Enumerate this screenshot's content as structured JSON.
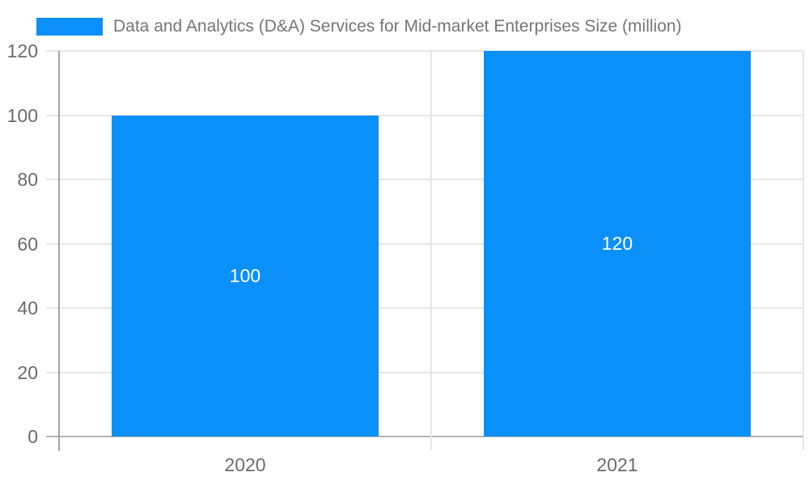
{
  "chart_data": {
    "type": "bar",
    "title": "",
    "categories": [
      "2020",
      "2021"
    ],
    "series": [
      {
        "name": "Data and Analytics (D&A) Services for Mid-market Enterprises Size (million)",
        "values": [
          100,
          120
        ],
        "data_labels": [
          "100",
          "120"
        ],
        "color": "#0b90f9"
      }
    ],
    "xlabel": "",
    "ylabel": "",
    "ylim": [
      0,
      120
    ],
    "y_ticks": [
      0,
      20,
      40,
      60,
      80,
      100,
      120
    ],
    "grid": true,
    "legend_position": "top-left",
    "bar_label_color": "#ffffff"
  },
  "colors": {
    "bar": "#0b90f9",
    "grid_line": "#e6e6e6",
    "axis_line": "#a3a3a3",
    "baseline": "#b3b3b3",
    "tick_label": "#6b6b6b",
    "legend_text": "#757575",
    "background": "#ffffff"
  }
}
